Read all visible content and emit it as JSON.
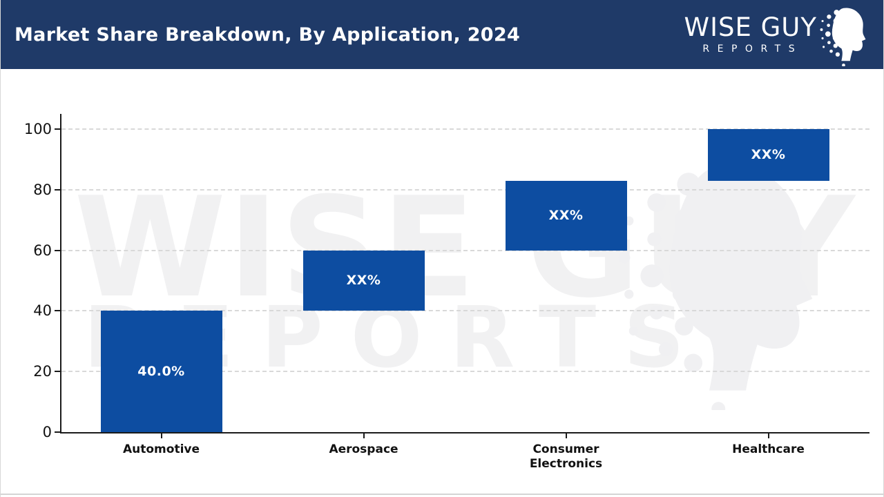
{
  "header": {
    "title": "Market Share Breakdown, By Application, 2024",
    "background": "#1f3a68",
    "logo": {
      "line1": "WISE GUY",
      "line2": "REPORTS"
    }
  },
  "watermark": {
    "line1": "WISE GUY",
    "line2": "REPORTS"
  },
  "chart_data": {
    "type": "bar",
    "variant": "waterfall",
    "title": "Market Share Breakdown, By Application, 2024",
    "categories": [
      "Automotive",
      "Aerospace",
      "Consumer Electronics",
      "Healthcare"
    ],
    "segments": [
      {
        "category": "Automotive",
        "from": 0,
        "to": 40,
        "value": 40,
        "label": "40.0%"
      },
      {
        "category": "Aerospace",
        "from": 40,
        "to": 60,
        "value": 20,
        "label": "XX%"
      },
      {
        "category": "Consumer Electronics",
        "from": 60,
        "to": 83,
        "value": 23,
        "label": "XX%"
      },
      {
        "category": "Healthcare",
        "from": 83,
        "to": 100,
        "value": 17,
        "label": "XX%"
      }
    ],
    "ylim": [
      0,
      100
    ],
    "yticks": [
      0,
      20,
      40,
      60,
      80,
      100
    ],
    "xlabel": "",
    "ylabel": "",
    "grid": "horizontal-dashed",
    "legend": "none",
    "bar_color": "#0d4da1",
    "bar_label_color": "#ffffff",
    "axis_color": "#1a1a1a",
    "gridline_color": "#d8d8d8"
  }
}
